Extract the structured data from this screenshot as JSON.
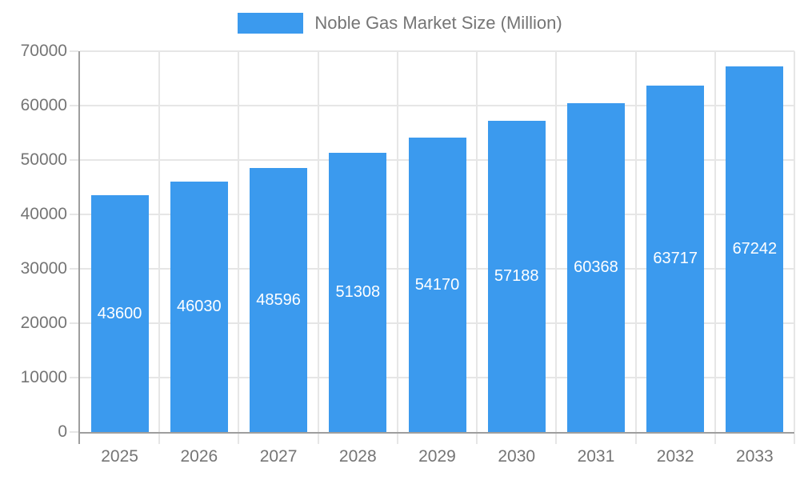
{
  "chart_data": {
    "type": "bar",
    "title": "Noble Gas Market Size (Million)",
    "categories": [
      "2025",
      "2026",
      "2027",
      "2028",
      "2029",
      "2030",
      "2031",
      "2032",
      "2033"
    ],
    "values": [
      43600,
      46030,
      48596,
      51308,
      54170,
      57188,
      60368,
      63717,
      67242
    ],
    "xlabel": "",
    "ylabel": "",
    "ylim": [
      0,
      70000
    ],
    "yticks": [
      0,
      10000,
      20000,
      30000,
      40000,
      50000,
      60000,
      70000
    ],
    "grid": true,
    "legend_position": "top",
    "legend_entries": [
      "Noble Gas Market Size (Million)"
    ],
    "bar_color": "#3B9AEE",
    "bar_label_color": "#FFFFFF",
    "axis_color": "#9E9E9E",
    "grid_color": "#E6E6E6",
    "tick_text_color": "#757575"
  }
}
